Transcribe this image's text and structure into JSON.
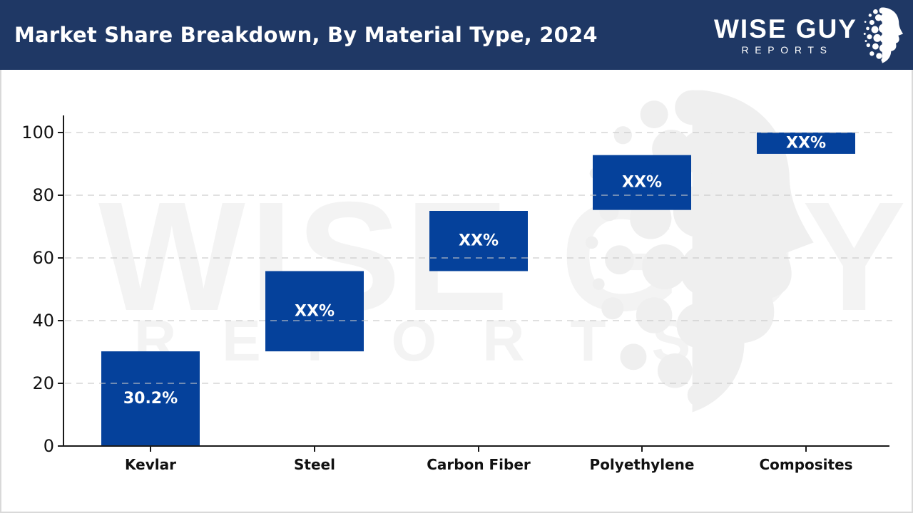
{
  "header": {
    "title": "Market Share Breakdown, By Material Type, 2024",
    "logo": {
      "wordmark": "WISE GUY",
      "subtext": "REPORTS"
    }
  },
  "watermark": {
    "wordmark": "WISE GUY",
    "subtext": "REPORTS"
  },
  "colors": {
    "header_bg": "#1f3865",
    "bar": "#05419b",
    "bar_label_text": "#ffffff",
    "axis": "#1a1a1a",
    "tick_label": "#111111",
    "grid": "#c8c8c8",
    "content_border": "#d9d9d9",
    "watermark": "#f3f3f3",
    "watermark_face": "#efefef",
    "logo_text": "#ffffff"
  },
  "chart_data": {
    "type": "bar",
    "subtype": "floating-waterfall",
    "title": "Market Share Breakdown, By Material Type, 2024",
    "categories": [
      "Kevlar",
      "Steel",
      "Carbon Fiber",
      "Polyethylene",
      "Composites"
    ],
    "series": [
      {
        "name": "Market share (%)",
        "segments": [
          {
            "category": "Kevlar",
            "base": 0,
            "top": 30.2,
            "label": "30.2%"
          },
          {
            "category": "Steel",
            "base": 30.2,
            "top": 55.8,
            "label": "XX%"
          },
          {
            "category": "Carbon Fiber",
            "base": 55.8,
            "top": 75.0,
            "label": "XX%"
          },
          {
            "category": "Polyethylene",
            "base": 75.3,
            "top": 92.8,
            "label": "XX%"
          },
          {
            "category": "Composites",
            "base": 93.2,
            "top": 100.0,
            "label": "XX%"
          }
        ]
      }
    ],
    "xlabel": "",
    "ylabel": "",
    "ylim": [
      0,
      100
    ],
    "yticks": [
      0,
      20,
      40,
      60,
      80,
      100
    ],
    "grid": true,
    "grid_style": "dashed",
    "legend": false
  }
}
